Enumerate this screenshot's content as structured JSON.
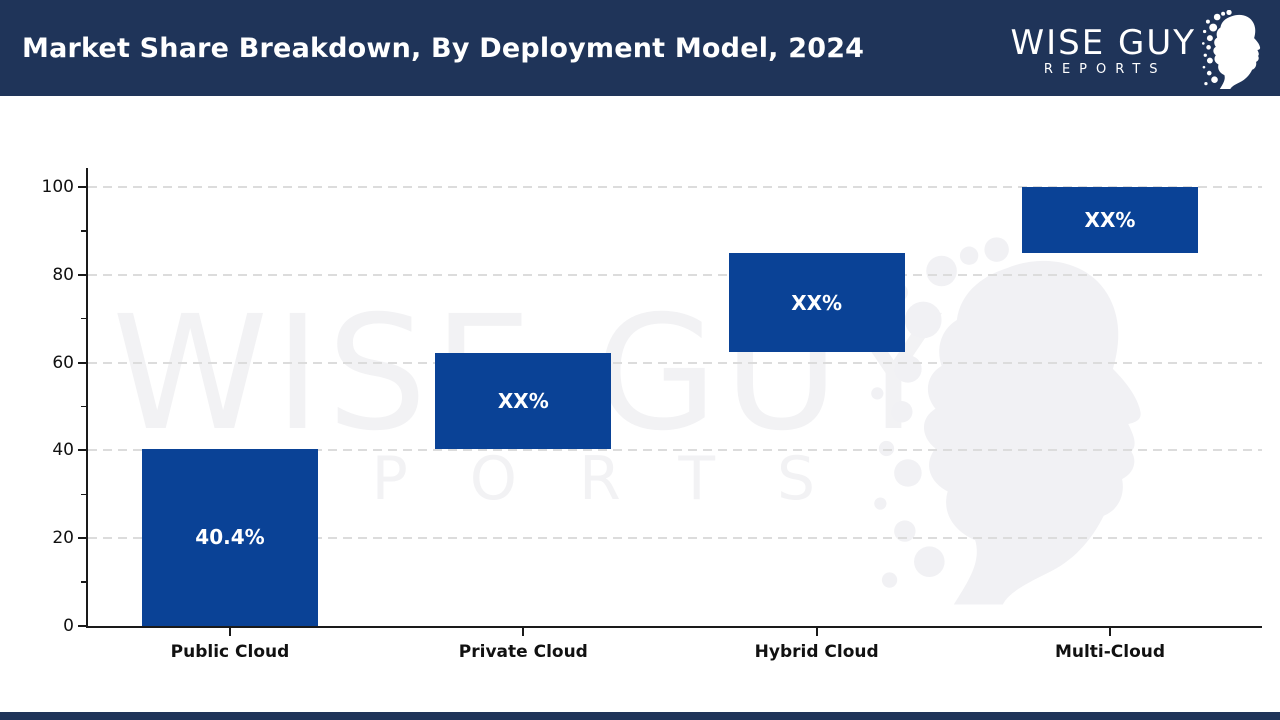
{
  "header": {
    "title": "Market Share Breakdown, By Deployment Model, 2024",
    "logo": {
      "line1": "WISE GUY",
      "line2": "REPORTS"
    }
  },
  "watermark": {
    "line1": "WISE GUY",
    "line2": "REPORTS"
  },
  "chart_data": {
    "type": "bar",
    "subtype": "waterfall",
    "title": "Market Share Breakdown, By Deployment Model, 2024",
    "categories": [
      "Public Cloud",
      "Private Cloud",
      "Hybrid Cloud",
      "Multi-Cloud"
    ],
    "segments": [
      [
        0,
        40.4
      ],
      [
        40.4,
        62.3
      ],
      [
        62.3,
        85.0
      ],
      [
        85.0,
        100.0
      ]
    ],
    "bar_labels": [
      "40.4%",
      "XX%",
      "XX%",
      "XX%"
    ],
    "values_shown": {
      "Public Cloud": "40.4%",
      "Private Cloud": "XX%",
      "Hybrid Cloud": "XX%",
      "Multi-Cloud": "XX%"
    },
    "ylim": [
      0,
      100
    ],
    "yticks": [
      0,
      20,
      40,
      60,
      80,
      100
    ],
    "yticks_minor": [
      10,
      30,
      50,
      70,
      90
    ],
    "grid": "horizontal-dashed",
    "legend": "none",
    "bar_color": "#0a4296",
    "bar_label_color": "#ffffff"
  },
  "colors": {
    "header_navy": "#1f3459",
    "footer_navy": "#1f3459",
    "bar_blue": "#0a4296",
    "gridline_gray": "#dcdcdc",
    "watermark_gray": "#f2f2f4",
    "axis_black": "#1a1a1a"
  }
}
